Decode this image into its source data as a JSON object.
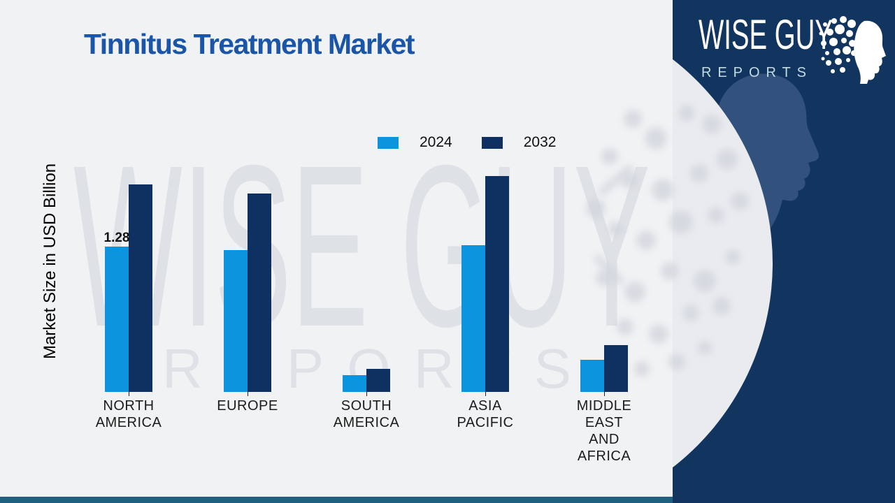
{
  "title": "Tinnitus Treatment Market",
  "y_axis_label": "Market Size in USD Billion",
  "logo": {
    "name_line": "WISE GUY",
    "sub_line": "REPORTS"
  },
  "watermark": {
    "name_line": "WISE GUY",
    "sub_line": "REPORTS"
  },
  "legend": {
    "items": [
      "2024",
      "2032"
    ]
  },
  "chart_data": {
    "type": "bar",
    "title": "Tinnitus Treatment Market",
    "xlabel": "",
    "ylabel": "Market Size in USD Billion",
    "categories": [
      "NORTH AMERICA",
      "EUROPE",
      "SOUTH AMERICA",
      "ASIA PACIFIC",
      "MIDDLE EAST AND AFRICA"
    ],
    "category_label_lines": [
      [
        "NORTH",
        "AMERICA"
      ],
      [
        "EUROPE"
      ],
      [
        "SOUTH",
        "AMERICA"
      ],
      [
        "ASIA",
        "PACIFIC"
      ],
      [
        "MIDDLE",
        "EAST",
        "AND",
        "AFRICA"
      ]
    ],
    "series": [
      {
        "name": "2024",
        "color": "#0c94df",
        "values": [
          1.28,
          1.25,
          0.15,
          1.29,
          0.28
        ]
      },
      {
        "name": "2032",
        "color": "#0f3161",
        "values": [
          1.83,
          1.75,
          0.2,
          1.9,
          0.41
        ]
      }
    ],
    "bar_labels": [
      {
        "category_index": 0,
        "series_index": 0,
        "text": "1.28"
      }
    ],
    "ylim": [
      0,
      2.0
    ],
    "grid": false,
    "legend_position": "top-center",
    "units": "USD Billion"
  },
  "colors": {
    "background": "#f1f2f4",
    "title_text": "#1a55a7",
    "series_2024": "#0c94df",
    "series_2032": "#0f3161",
    "side_panel": "#123560",
    "face_silhouette": "#33517d",
    "panel_circle": "#e9ebef",
    "watermark": "#dadde2",
    "bottom_bar": "#20607f",
    "category_text": "#1c1c1c"
  }
}
